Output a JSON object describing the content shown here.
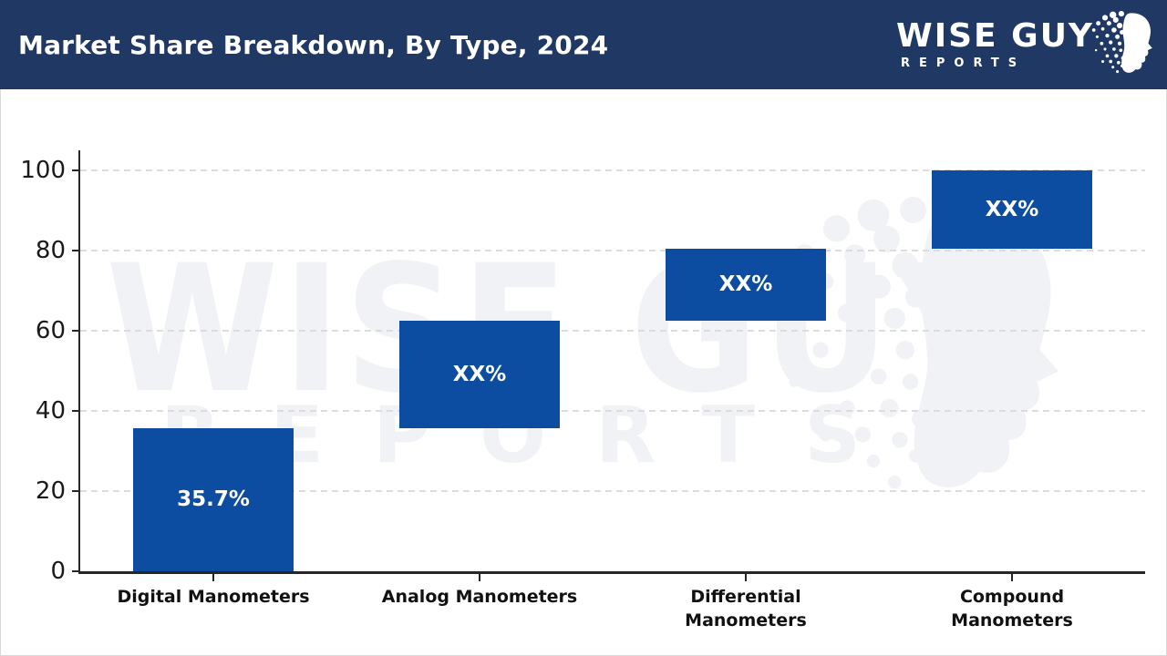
{
  "header": {
    "title": "Market Share Breakdown, By Type, 2024",
    "bg_color": "#203864",
    "logo": {
      "line1": "WISE GUY",
      "line2": "REPORTS"
    }
  },
  "watermark": {
    "line1": "WISE GUY",
    "line2": "REPORTS"
  },
  "chart_data": {
    "type": "bar",
    "subtype": "waterfall",
    "title": "Market Share Breakdown, By Type, 2024",
    "categories": [
      "Digital Manometers",
      "Analog Manometers",
      "Differential\nManometers",
      "Compound\nManometers"
    ],
    "segments": [
      {
        "start": 0,
        "end": 35.7,
        "value": 35.7,
        "label": "35.7%"
      },
      {
        "start": 35.7,
        "end": 62.5,
        "value": 26.8,
        "label": "XX%"
      },
      {
        "start": 62.5,
        "end": 80.5,
        "value": 18.0,
        "label": "XX%"
      },
      {
        "start": 80.5,
        "end": 100,
        "value": 19.5,
        "label": "XX%"
      }
    ],
    "yticks": [
      0,
      20,
      40,
      60,
      80,
      100
    ],
    "ylim": [
      0,
      105
    ],
    "xlabel": "",
    "ylabel": "",
    "grid": "dashed-horizontal",
    "legend": "none",
    "bar_color": "#0C4DA2",
    "bar_label_color": "#FFFFFF",
    "axis_color": "#262626",
    "grid_color": "#DCDCDC"
  }
}
